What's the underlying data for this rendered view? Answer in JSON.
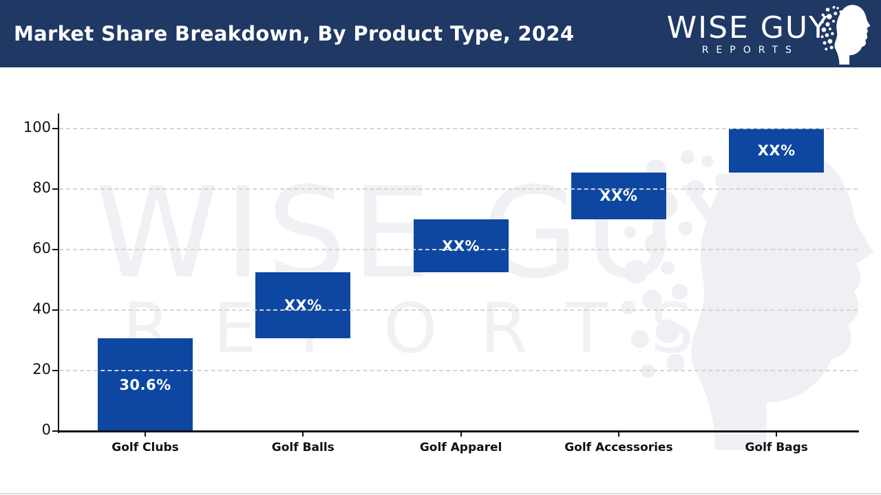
{
  "header": {
    "title": "Market Share Breakdown, By Product Type, 2024",
    "background_color": "#1f3864",
    "logo": {
      "line1": "WISE GUY",
      "line2": "REPORTS"
    }
  },
  "watermark": {
    "line1": "WISE GUY",
    "line2": "REPORTS"
  },
  "chart_data": {
    "type": "bar",
    "subtype": "waterfall",
    "title": "Market Share Breakdown, By Product Type, 2024",
    "categories": [
      "Golf Clubs",
      "Golf Balls",
      "Golf Apparel",
      "Golf Accessories",
      "Golf Bags"
    ],
    "segments": [
      {
        "category": "Golf Clubs",
        "start": 0,
        "end": 30.6,
        "label": "30.6%"
      },
      {
        "category": "Golf Balls",
        "start": 30.6,
        "end": 52.4,
        "label": "XX%"
      },
      {
        "category": "Golf Apparel",
        "start": 52.4,
        "end": 70,
        "label": "XX%"
      },
      {
        "category": "Golf Accessories",
        "start": 70,
        "end": 85.4,
        "label": "XX%"
      },
      {
        "category": "Golf Bags",
        "start": 85.4,
        "end": 100,
        "label": "XX%"
      }
    ],
    "xlabel": "",
    "ylabel": "",
    "yticks": [
      0,
      20,
      40,
      60,
      80,
      100
    ],
    "ylim": [
      0,
      104
    ],
    "grid": true,
    "grid_style": "dashed",
    "legend": false,
    "bar_color": "#0d47a1",
    "bar_label_color": "#ffffff",
    "axis_color": "#111111",
    "gridline_color": "#d4d4d4"
  }
}
